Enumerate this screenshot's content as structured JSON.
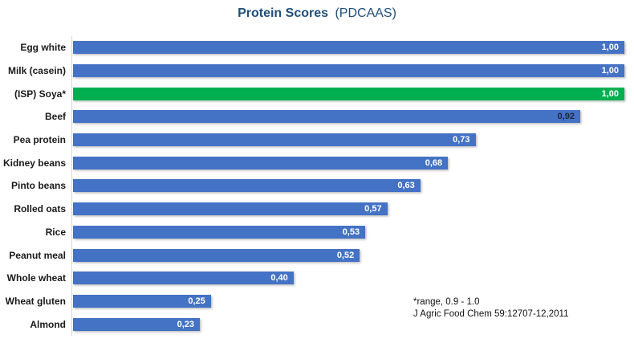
{
  "title": {
    "main": "Protein Scores",
    "suffix": "(PDCAAS)"
  },
  "annotation": {
    "line1": "*range, 0.9 - 1.0",
    "line2": "J Agric Food Chem 59:12707-12,2011"
  },
  "colors": {
    "bar_default": "#4472C4",
    "bar_highlight": "#00B050",
    "title_text": "#1F4E79",
    "axis_line": "#D9D9D9",
    "value_label_light": "#FFFFFF",
    "value_label_dark": "#1D2738"
  },
  "chart_data": {
    "type": "bar",
    "orientation": "horizontal",
    "title": "Protein Scores (PDCAAS)",
    "xlabel": "",
    "ylabel": "",
    "xlim": [
      0,
      1.0
    ],
    "grid": false,
    "legend": false,
    "categories": [
      "Egg white",
      "Milk (casein)",
      "(ISP) Soya*",
      "Beef",
      "Pea protein",
      "Kidney beans",
      "Pinto beans",
      "Rolled oats",
      "Rice",
      "Peanut meal",
      "Whole wheat",
      "Wheat gluten",
      "Almond"
    ],
    "values": [
      1.0,
      1.0,
      1.0,
      0.92,
      0.73,
      0.68,
      0.63,
      0.57,
      0.53,
      0.52,
      0.4,
      0.25,
      0.23
    ],
    "value_labels": [
      "1,00",
      "1,00",
      "1,00",
      "0,92",
      "0,73",
      "0,68",
      "0,63",
      "0,57",
      "0,53",
      "0,52",
      "0,40",
      "0,25",
      "0,23"
    ],
    "bar_colors": [
      "#4472C4",
      "#4472C4",
      "#00B050",
      "#4472C4",
      "#4472C4",
      "#4472C4",
      "#4472C4",
      "#4472C4",
      "#4472C4",
      "#4472C4",
      "#4472C4",
      "#4472C4",
      "#4472C4"
    ],
    "value_label_colors": [
      "#FFFFFF",
      "#FFFFFF",
      "#FFFFFF",
      "#1D2738",
      "#FFFFFF",
      "#FFFFFF",
      "#FFFFFF",
      "#FFFFFF",
      "#FFFFFF",
      "#FFFFFF",
      "#FFFFFF",
      "#FFFFFF",
      "#FFFFFF"
    ]
  }
}
